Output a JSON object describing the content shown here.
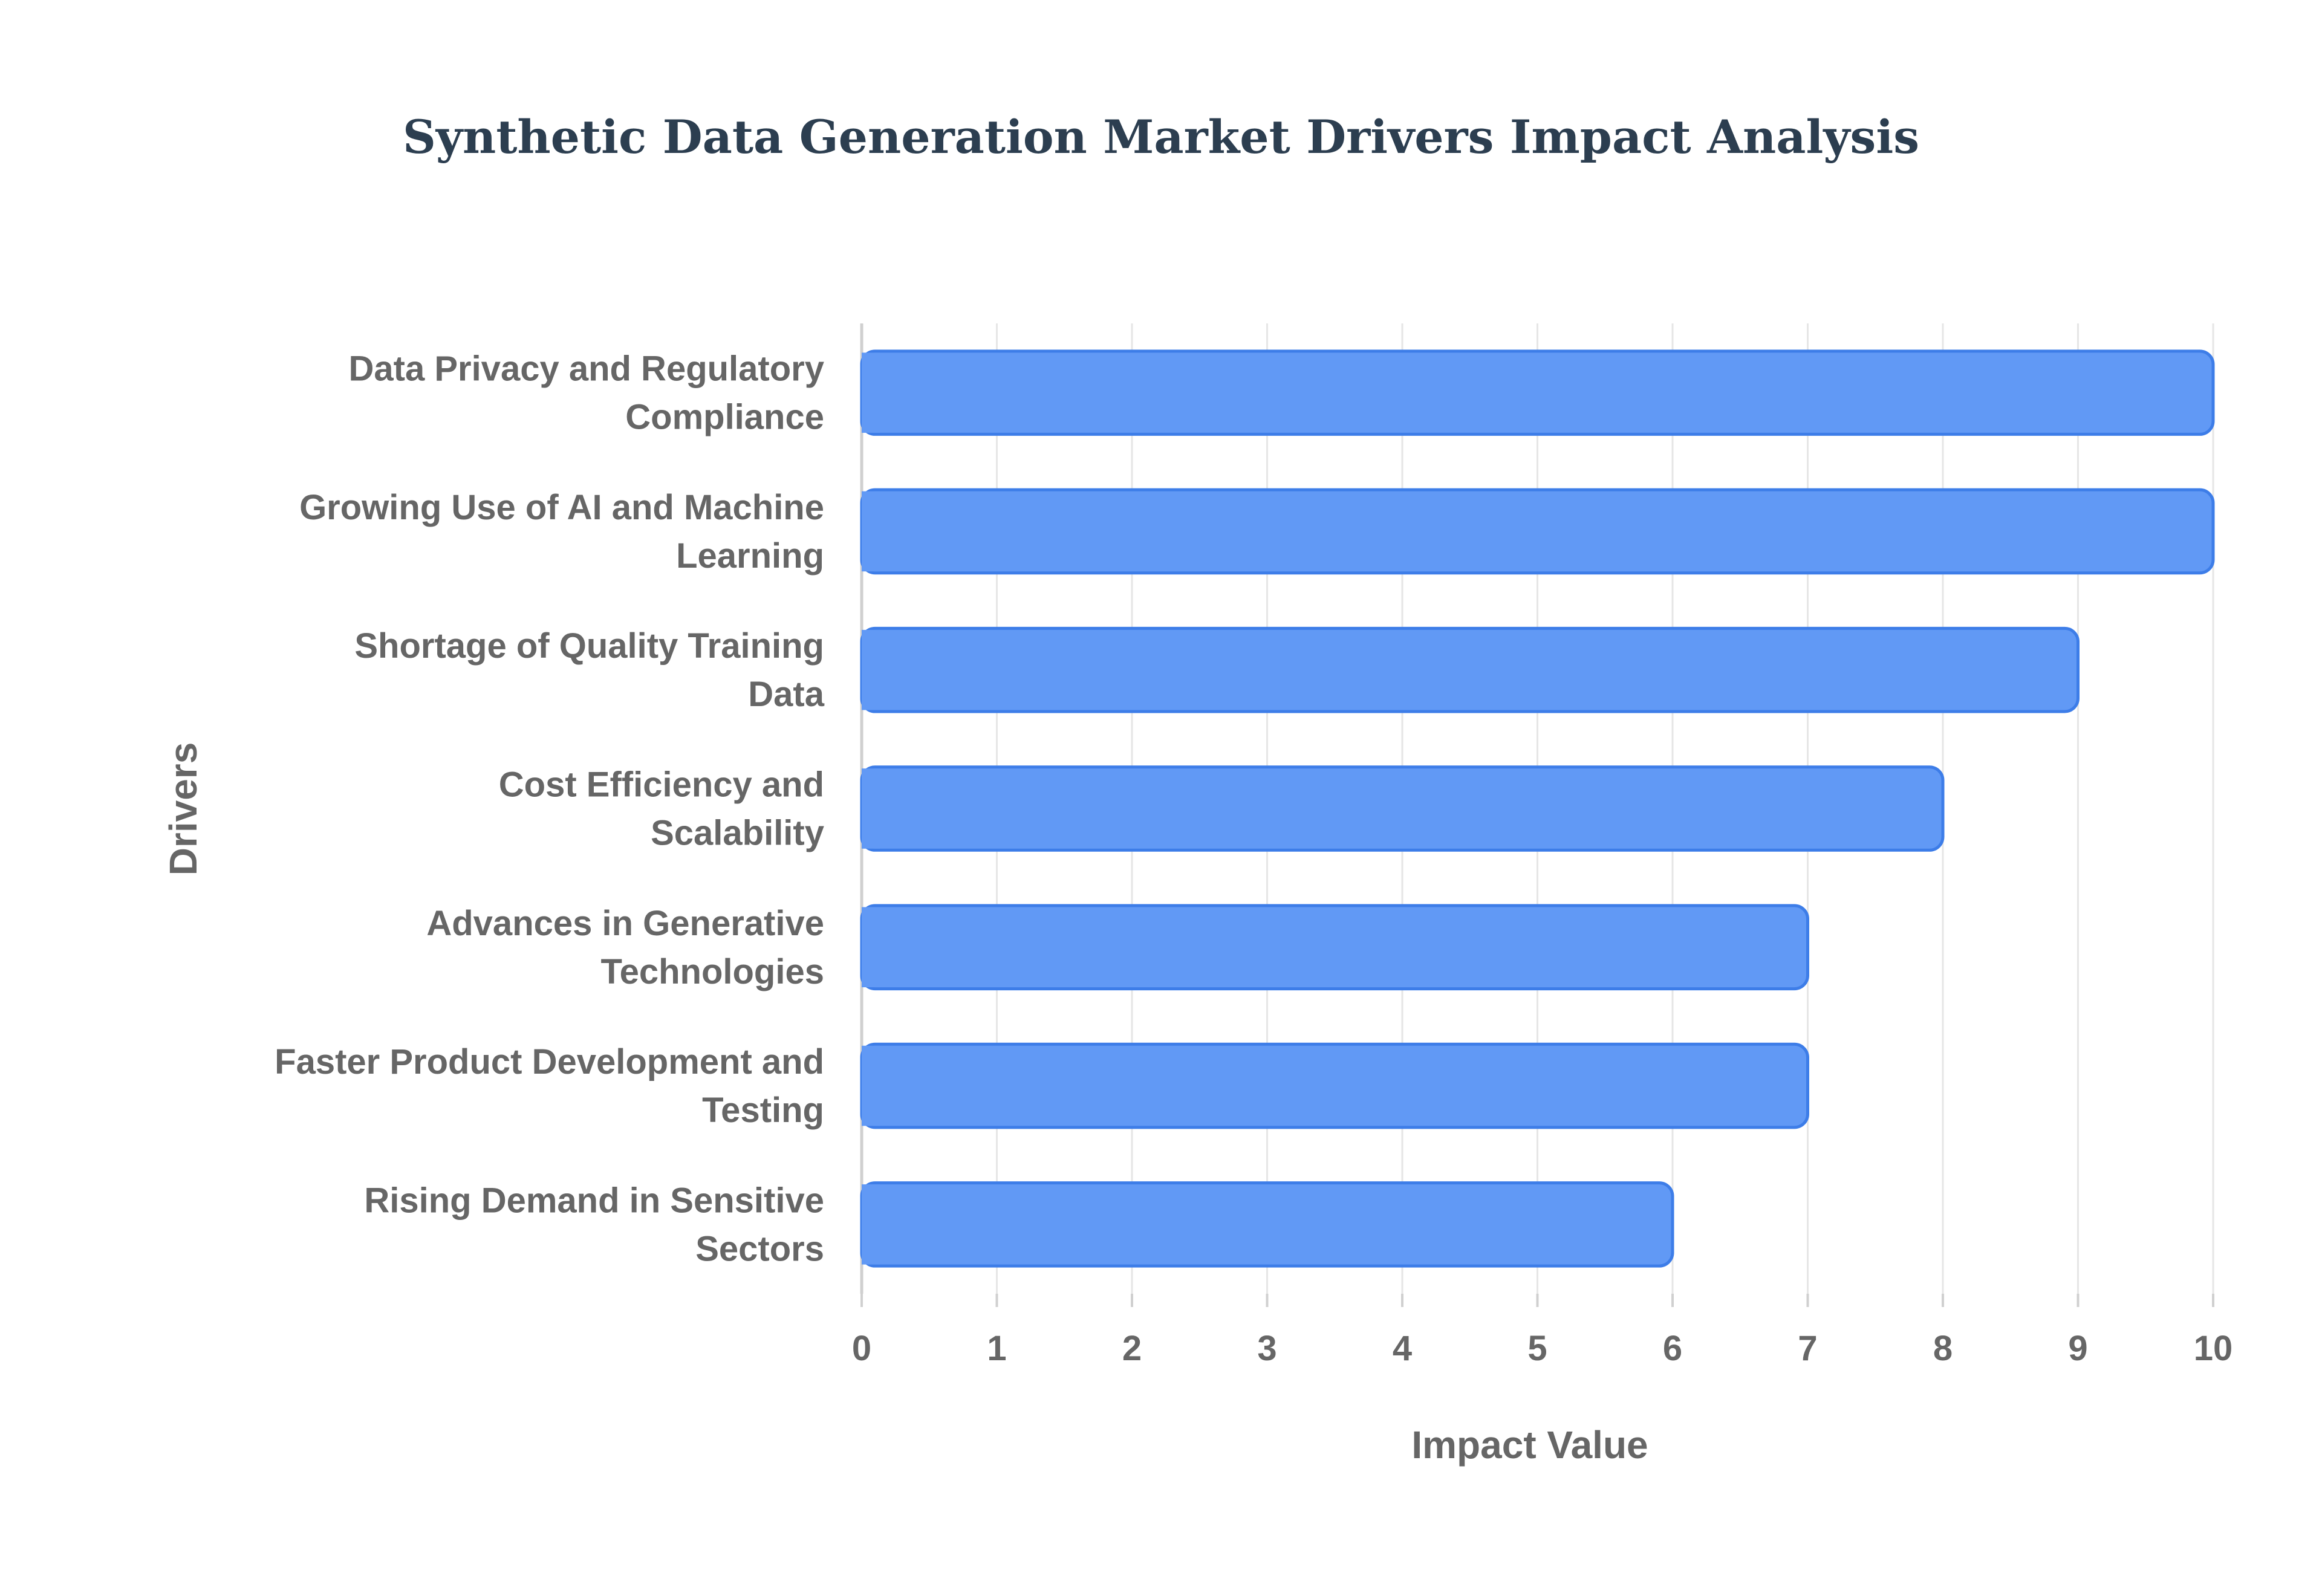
{
  "chart_data": {
    "type": "bar",
    "orientation": "horizontal",
    "title": "Synthetic Data Generation Market Drivers Impact Analysis",
    "xlabel": "Impact Value",
    "ylabel": "Drivers",
    "xlim": [
      0,
      10
    ],
    "xticks": [
      "0",
      "1",
      "2",
      "3",
      "4",
      "5",
      "6",
      "7",
      "8",
      "9",
      "10"
    ],
    "grid": true,
    "legend": "none",
    "categories": [
      [
        "Data Privacy and Regulatory",
        "Compliance"
      ],
      [
        "Growing Use of AI and Machine",
        "Learning"
      ],
      [
        "Shortage of Quality Training",
        "Data"
      ],
      [
        "Cost Efficiency and",
        "Scalability"
      ],
      [
        "Advances in Generative",
        "Technologies"
      ],
      [
        "Faster Product Development and",
        "Testing"
      ],
      [
        "Rising Demand in Sensitive",
        "Sectors"
      ]
    ],
    "values": [
      10,
      10,
      9,
      8,
      7,
      7,
      6
    ],
    "colors": {
      "bar_fill": "#6199f5",
      "bar_stroke": "#3d7de8",
      "title": "#2c3e50",
      "text": "#666666",
      "grid": "#e6e6e6",
      "axis": "#d0d0d0"
    }
  }
}
